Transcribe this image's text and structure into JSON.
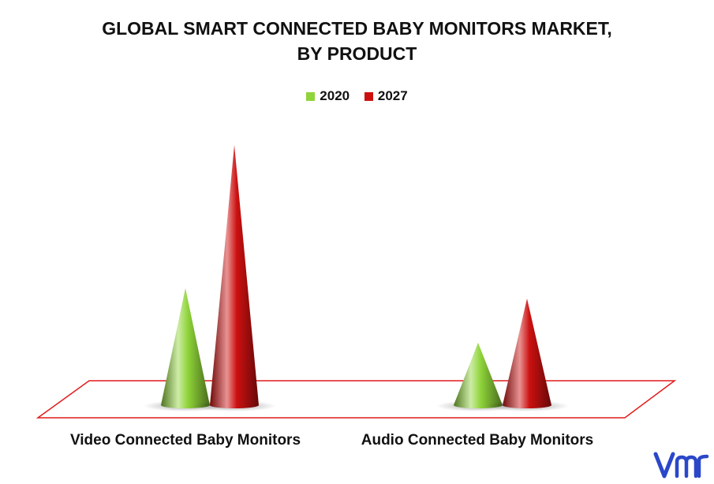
{
  "chart_data": {
    "type": "bar",
    "shape": "cone",
    "title_lines": [
      "GLOBAL SMART CONNECTED BABY MONITORS MARKET,",
      "BY PRODUCT"
    ],
    "categories": [
      "Video Connected Baby Monitors",
      "Audio Connected Baby Monitors"
    ],
    "series": [
      {
        "name": "2020",
        "color": "#8fd43a",
        "values": [
          45,
          24
        ]
      },
      {
        "name": "2027",
        "color": "#cc1010",
        "values": [
          100,
          41
        ]
      }
    ],
    "ylim": [
      0,
      100
    ],
    "grid": false,
    "legend": "top-center",
    "floor_color": "#e21b1b"
  }
}
